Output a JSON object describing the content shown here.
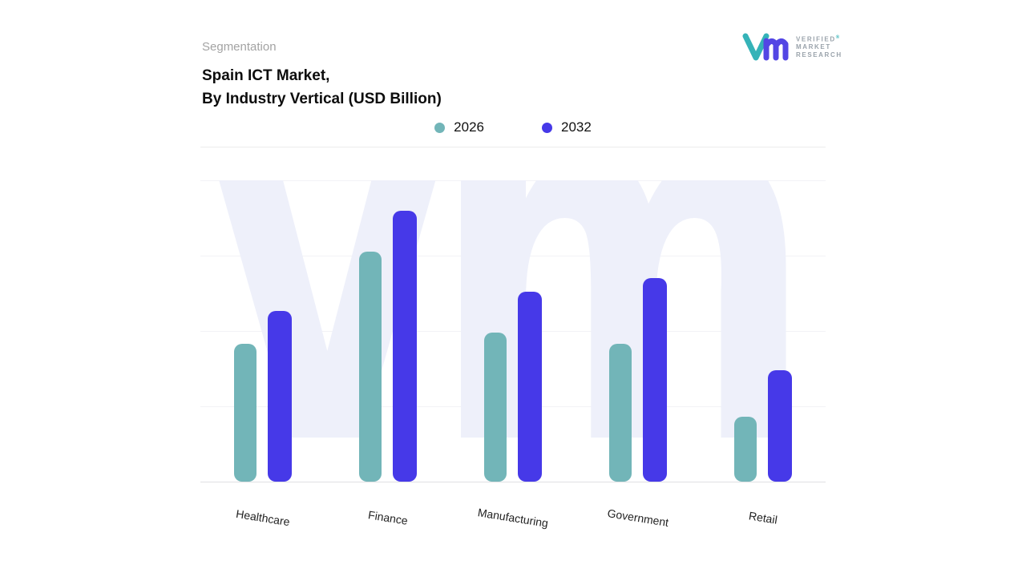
{
  "header": {
    "eyebrow": "Segmentation",
    "title_line1": "Spain ICT Market,",
    "title_line2": "By Industry Vertical (USD Billion)"
  },
  "logo": {
    "line1": "VERIFIED",
    "line2": "MARKET",
    "line3": "RESEARCH",
    "registered": "®",
    "teal": "#35b3b8",
    "purple": "#5346e4"
  },
  "legend": {
    "items": [
      {
        "label": "2026",
        "color": "#72b5b8"
      },
      {
        "label": "2032",
        "color": "#4639e8"
      }
    ]
  },
  "watermark": {
    "text": "vmr"
  },
  "chart_data": {
    "type": "bar",
    "title": "Spain ICT Market, By Industry Vertical (USD Billion)",
    "categories": [
      "Healthcare",
      "Finance",
      "Manufacturing",
      "Government",
      "Retail"
    ],
    "series": [
      {
        "name": "2026",
        "color": "#72b5b8",
        "values": [
          51,
          85,
          55,
          51,
          24
        ]
      },
      {
        "name": "2032",
        "color": "#4639e8",
        "values": [
          63,
          100,
          70,
          75,
          41
        ]
      }
    ],
    "xlabel": "",
    "ylabel": "",
    "ylim": [
      0,
      100
    ],
    "grid": "faint-horizontal",
    "legend_position": "top-center",
    "value_axis_labels_visible": false
  }
}
